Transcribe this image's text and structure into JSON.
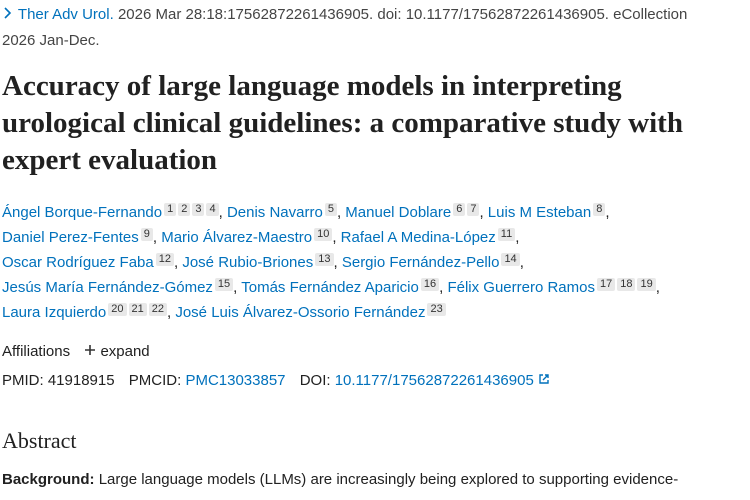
{
  "citation": {
    "journal": "Ther Adv Urol.",
    "text": "2026 Mar 28:18:17562872261436905. doi: 10.1177/17562872261436905. eCollection 2026 Jan-Dec."
  },
  "title": "Accuracy of large language models in interpreting urological clinical guidelines: a comparative study with expert evaluation",
  "authors": {
    "separator": ",",
    "list": [
      {
        "name": "Ángel Borque-Fernando",
        "affs": [
          1,
          2,
          3,
          4
        ]
      },
      {
        "name": "Denis Navarro",
        "affs": [
          5
        ]
      },
      {
        "name": "Manuel Doblare",
        "affs": [
          6,
          7
        ]
      },
      {
        "name": "Luis M Esteban",
        "affs": [
          8
        ]
      },
      {
        "name": "Daniel Perez-Fentes",
        "affs": [
          9
        ]
      },
      {
        "name": "Mario Álvarez-Maestro",
        "affs": [
          10
        ]
      },
      {
        "name": "Rafael A Medina-López",
        "affs": [
          11
        ]
      },
      {
        "name": "Oscar Rodríguez Faba",
        "affs": [
          12
        ]
      },
      {
        "name": "José Rubio-Briones",
        "affs": [
          13
        ]
      },
      {
        "name": "Sergio Fernández-Pello",
        "affs": [
          14
        ]
      },
      {
        "name": "Jesús María Fernández-Gómez",
        "affs": [
          15
        ]
      },
      {
        "name": "Tomás Fernández Aparicio",
        "affs": [
          16
        ]
      },
      {
        "name": "Félix Guerrero Ramos",
        "affs": [
          17,
          18,
          19
        ]
      },
      {
        "name": "Laura Izquierdo",
        "affs": [
          20,
          21,
          22
        ]
      },
      {
        "name": "José Luis Álvarez-Ossorio Fernández",
        "affs": [
          23
        ]
      }
    ]
  },
  "affiliations": {
    "label": "Affiliations",
    "expand": "expand"
  },
  "ids": {
    "pmid_label": "PMID:",
    "pmid": "41918915",
    "pmcid_label": "PMCID:",
    "pmcid": "PMC13033857",
    "doi_label": "DOI:",
    "doi": "10.1177/17562872261436905"
  },
  "abstract": {
    "heading": "Abstract",
    "background_label": "Background:",
    "background_text": "Large language models (LLMs) are increasingly being explored to supporting evidence-"
  }
}
